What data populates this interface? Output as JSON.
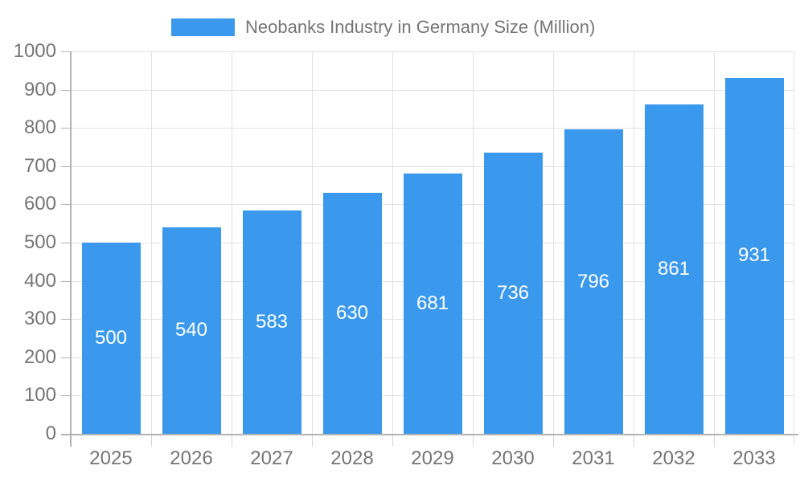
{
  "chart_data": {
    "type": "bar",
    "title": "Neobanks Industry in Germany Size (Million)",
    "categories": [
      "2025",
      "2026",
      "2027",
      "2028",
      "2029",
      "2030",
      "2031",
      "2032",
      "2033"
    ],
    "values": [
      500,
      540,
      583,
      630,
      681,
      736,
      796,
      861,
      931
    ],
    "xlabel": "",
    "ylabel": "",
    "ylim": [
      0,
      1000
    ],
    "ytick_step": 100,
    "grid": true,
    "legend_position": "top",
    "value_label_position": "inside-center",
    "colors": {
      "bar": "#3B99ED",
      "value_label": "#FFFFFF",
      "axis_text": "#757575",
      "grid_line": "#E2E2E2",
      "axis_line": "#B3B3B3",
      "boundary_tick": "#D4D4D4",
      "background": "#FFFFFF"
    }
  }
}
